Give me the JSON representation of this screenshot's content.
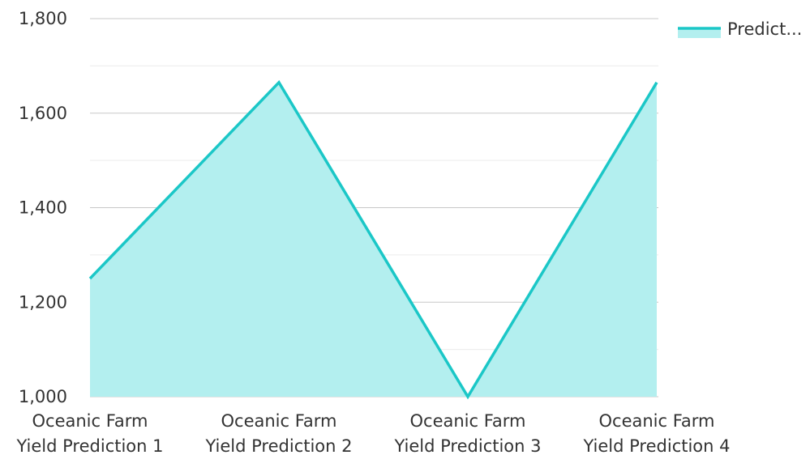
{
  "chart_data": {
    "type": "area",
    "categories": [
      "Oceanic Farm Yield Prediction 1",
      "Oceanic Farm Yield Prediction 2",
      "Oceanic Farm Yield Prediction 3",
      "Oceanic Farm Yield Prediction 4"
    ],
    "category_lines": [
      [
        "Oceanic Farm",
        "Yield Prediction 1"
      ],
      [
        "Oceanic Farm",
        "Yield Prediction 2"
      ],
      [
        "Oceanic Farm",
        "Yield Prediction 3"
      ],
      [
        "Oceanic Farm",
        "Yield Prediction 4"
      ]
    ],
    "series": [
      {
        "legend_label": "Predict...",
        "values": [
          1250,
          1665,
          1000,
          1665
        ],
        "line_color": "#1bc7c7",
        "fill_color": "#b3efef"
      }
    ],
    "ylim": [
      1000,
      1800
    ],
    "y_ticks": [
      1000,
      1200,
      1400,
      1600,
      1800
    ],
    "y_tick_labels": [
      "1,000",
      "1,200",
      "1,400",
      "1,600",
      "1,800"
    ],
    "minor_gridlines": true,
    "grid": true,
    "legend_position": "top-right",
    "title": "",
    "xlabel": "",
    "ylabel": ""
  }
}
